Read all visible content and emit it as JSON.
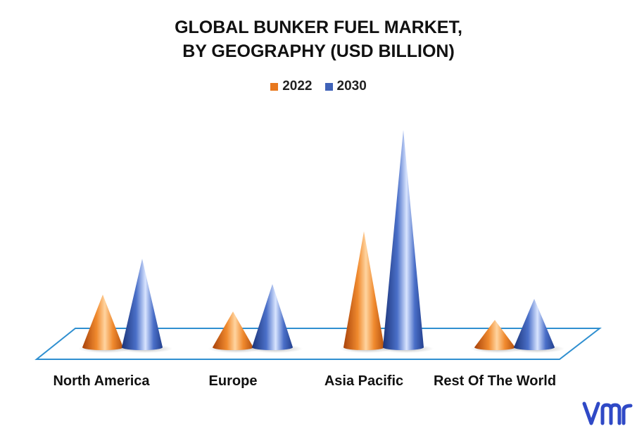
{
  "chart_data": {
    "type": "bar",
    "shape": "cone",
    "title_lines": [
      "GLOBAL BUNKER FUEL MARKET,",
      "BY GEOGRAPHY (USD BILLION)"
    ],
    "categories": [
      "North America",
      "Europe",
      "Asia Pacific",
      "Rest Of The World"
    ],
    "series": [
      {
        "name": "2022",
        "color": "#e8781e",
        "values": [
          25,
          17,
          55,
          13
        ]
      },
      {
        "name": "2030",
        "color": "#3f62b8",
        "values": [
          42,
          30,
          103,
          23
        ]
      }
    ],
    "legend_position": "top-center",
    "grid": false,
    "ylim": [
      0,
      110
    ]
  },
  "brand": {
    "logo_icon": "vmr-logo-icon",
    "logo_color": "#2f49c6"
  }
}
